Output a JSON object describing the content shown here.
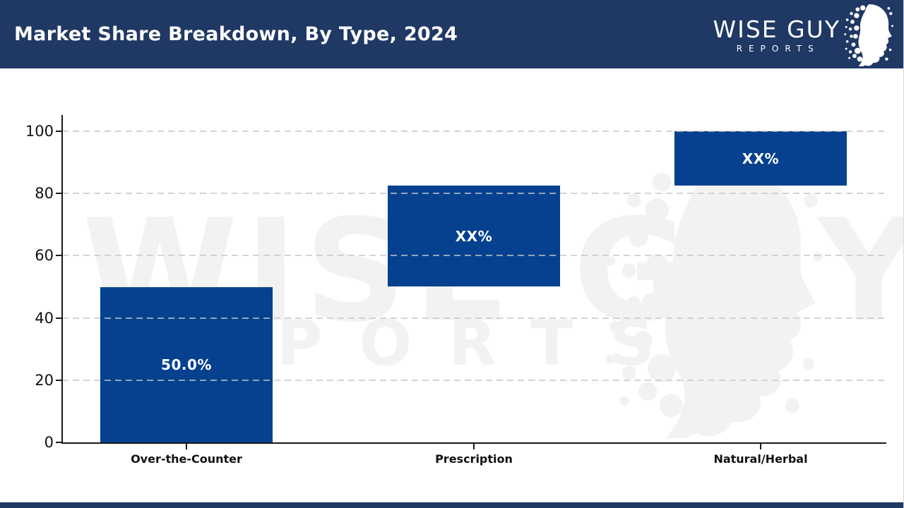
{
  "header": {
    "title": "Market Share Breakdown, By Type, 2024",
    "bg_color": "#1f3864",
    "logo": {
      "wordmark": "WISE GUY",
      "subtitle": "REPORTS"
    }
  },
  "watermark": {
    "wordmark": "WISE GUY",
    "subtitle": "REPORTS"
  },
  "footer": {
    "bg_color": "#1f3864"
  },
  "chart_data": {
    "type": "bar",
    "subtype": "waterfall",
    "title": "Market Share Breakdown, By Type, 2024",
    "categories": [
      "Over-the-Counter",
      "Prescription",
      "Natural/Herbal"
    ],
    "segments": [
      {
        "category": "Over-the-Counter",
        "start": 0,
        "end": 50,
        "value_label": "50.0%"
      },
      {
        "category": "Prescription",
        "start": 50,
        "end": 82.5,
        "value_label": "XX%"
      },
      {
        "category": "Natural/Herbal",
        "start": 82.5,
        "end": 100,
        "value_label": "XX%"
      }
    ],
    "yticks": [
      0,
      20,
      40,
      60,
      80,
      100
    ],
    "ylim": [
      0,
      105
    ],
    "xlabel": "",
    "ylabel": "",
    "bar_color": "#05418f",
    "axis_color": "#1a1a1a",
    "grid": {
      "axis": "y",
      "style": "dashed",
      "color": "#d9d9d9"
    },
    "legend": "none"
  }
}
